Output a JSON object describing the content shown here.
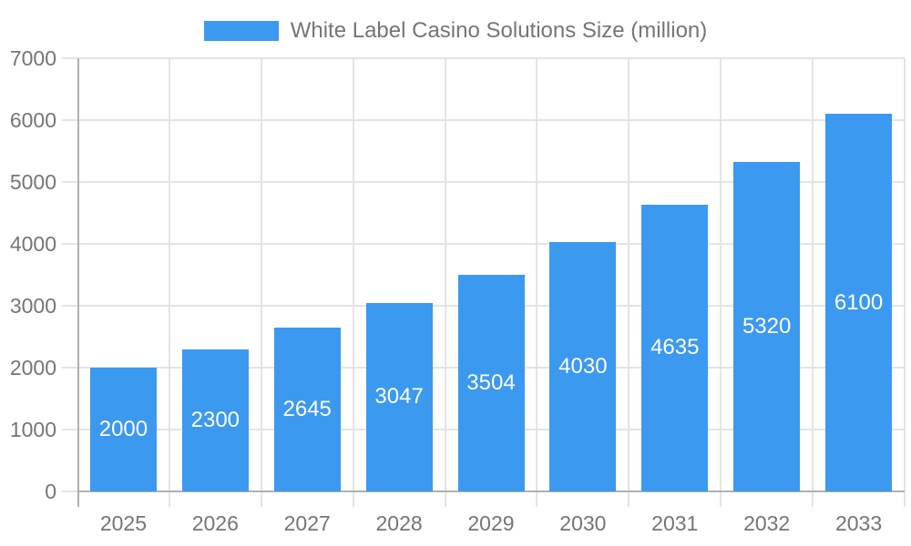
{
  "legend": {
    "label": "White Label Casino Solutions Size (million)"
  },
  "chart_data": {
    "type": "bar",
    "title": "White Label Casino Solutions Size (million)",
    "categories": [
      "2025",
      "2026",
      "2027",
      "2028",
      "2029",
      "2030",
      "2031",
      "2032",
      "2033"
    ],
    "values": [
      2000,
      2300,
      2645,
      3047,
      3504,
      4030,
      4635,
      5320,
      6100
    ],
    "value_labels": [
      "2000",
      "2300",
      "2645",
      "3047",
      "3504",
      "4030",
      "4635",
      "5320",
      "6100"
    ],
    "xlabel": "",
    "ylabel": "",
    "ylim": [
      0,
      7000
    ],
    "ytick_interval": 1000,
    "yticks": [
      "0",
      "1000",
      "2000",
      "3000",
      "4000",
      "5000",
      "6000",
      "7000"
    ],
    "grid": "horizontal and vertical gridlines on",
    "legend_position": "top center",
    "value_label_position": "inside bar, centered",
    "colors": {
      "bar": "#3B99F0",
      "value_label": "#ffffff",
      "grid": "#e4e4e4",
      "axis": "#b0b0b0",
      "tick_label": "#757575",
      "background": "#ffffff"
    }
  }
}
